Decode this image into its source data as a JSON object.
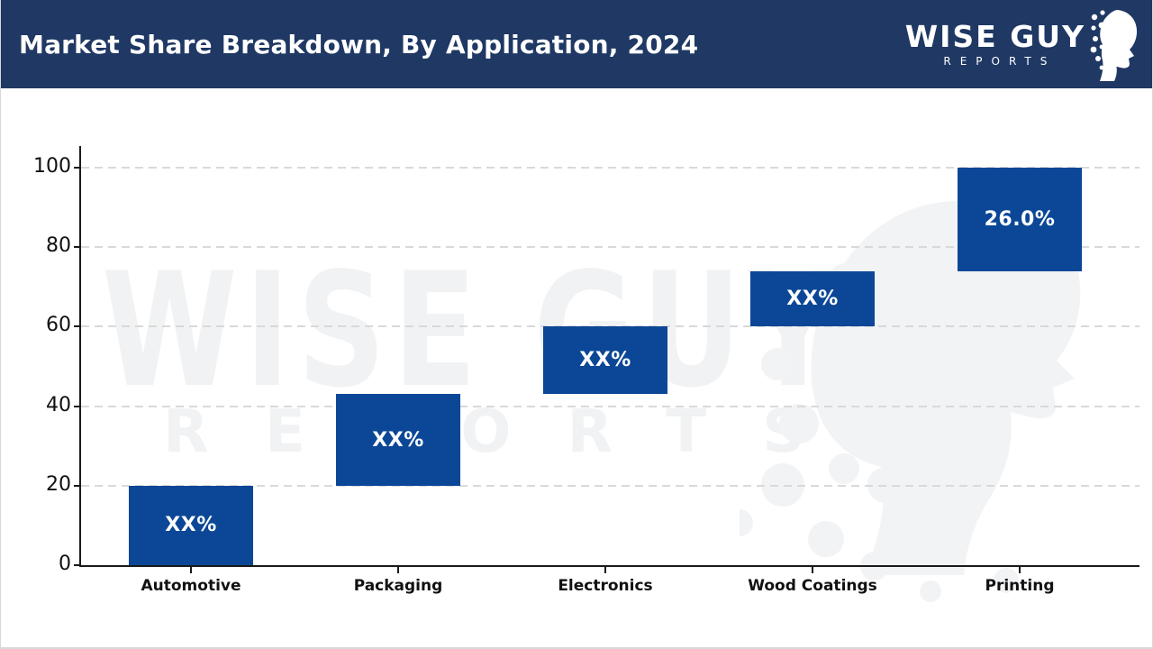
{
  "header": {
    "title": "Market Share Breakdown, By Application, 2024",
    "bg_color": "#1f3864",
    "logo": {
      "line1": "WISE GUY",
      "line2": "REPORTS"
    }
  },
  "watermark": {
    "line1": "WISE GUY",
    "line2": "REPORTS"
  },
  "chart_data": {
    "type": "bar",
    "subtype": "waterfall",
    "title": "Market Share Breakdown, By Application, 2024",
    "categories": [
      "Automotive",
      "Packaging",
      "Electronics",
      "Wood Coatings",
      "Printing"
    ],
    "segments": [
      {
        "category": "Automotive",
        "start": 0,
        "end": 20,
        "label": "XX%"
      },
      {
        "category": "Packaging",
        "start": 20,
        "end": 43,
        "label": "XX%"
      },
      {
        "category": "Electronics",
        "start": 43,
        "end": 60,
        "label": "XX%"
      },
      {
        "category": "Wood Coatings",
        "start": 60,
        "end": 74,
        "label": "XX%"
      },
      {
        "category": "Printing",
        "start": 74,
        "end": 100,
        "label": "26.0%"
      }
    ],
    "yticks": [
      0,
      20,
      40,
      60,
      80,
      100
    ],
    "ylim": [
      0,
      105
    ],
    "xlabel": "",
    "ylabel": "",
    "grid": "horizontal-dashed",
    "legend": "none",
    "bar_color": "#0b4796",
    "bar_label_color": "#ffffff",
    "axis_color": "#1a1a1a",
    "grid_color": "#d9d9d9"
  }
}
